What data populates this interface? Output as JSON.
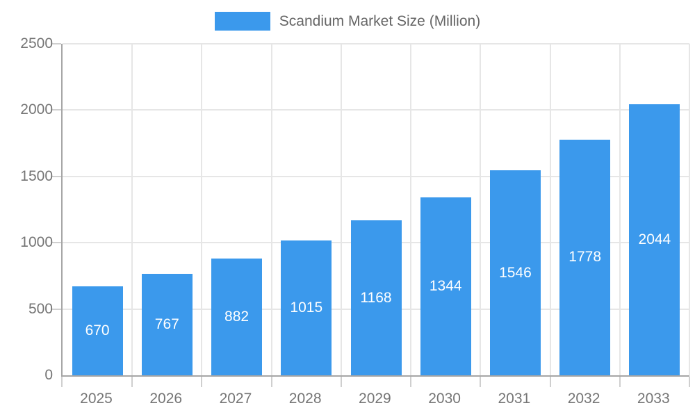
{
  "legend": {
    "items": [
      {
        "label": "Scandium Market Size (Million)",
        "color": "#3B99EC"
      }
    ]
  },
  "chart_data": {
    "type": "bar",
    "title": "Scandium Market Size (Million)",
    "categories": [
      "2025",
      "2026",
      "2027",
      "2028",
      "2029",
      "2030",
      "2031",
      "2032",
      "2033"
    ],
    "values": [
      670,
      767,
      882,
      1015,
      1168,
      1344,
      1546,
      1778,
      2044
    ],
    "xlabel": "",
    "ylabel": "",
    "ylim": [
      0,
      2500
    ],
    "ytick_step": 500,
    "ytick_labels": [
      "0",
      "500",
      "1000",
      "1500",
      "2000",
      "2500"
    ],
    "grid": true,
    "legend_position": "top",
    "data_labels_shown": true,
    "colors": {
      "bar": "#3B99EC",
      "value_label": "#FFFFFF",
      "axis_line": "#A6A6A6",
      "grid_line": "#E6E6E6",
      "tick_mark": "#CFCFCF",
      "tick_text": "#757575",
      "legend_text": "#666666",
      "background": "#FFFFFF"
    }
  }
}
